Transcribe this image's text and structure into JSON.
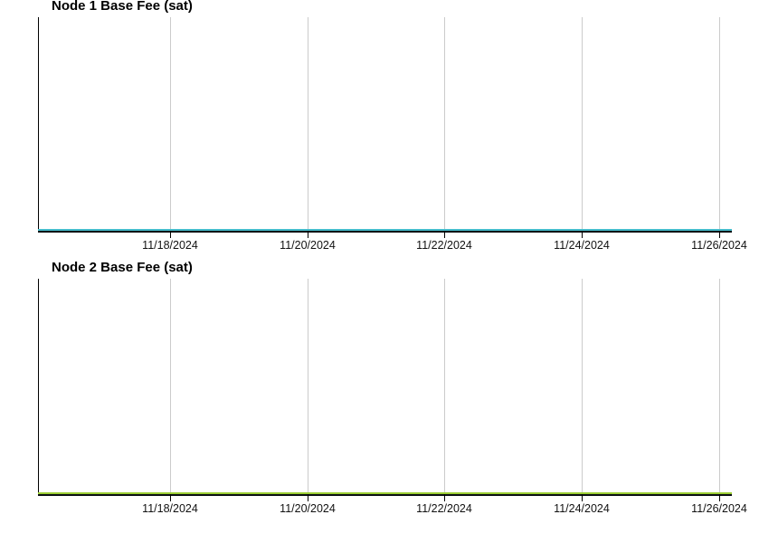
{
  "colors": {
    "background": "#ffffff",
    "axis": "#0b0f13",
    "gridline": "#cbcbcb",
    "title_text": "#000000",
    "tick_label_text": "#121212",
    "node1_line": "#45bccb",
    "node2_line": "#9acd32"
  },
  "chart_data": [
    {
      "type": "line",
      "title": "Node 1 Base Fee (sat)",
      "xlabel": "",
      "ylabel": "",
      "x_tick_labels": [
        "11/18/2024",
        "11/20/2024",
        "11/22/2024",
        "11/24/2024",
        "11/26/2024"
      ],
      "x_range_approx": [
        "11/16/2024",
        "11/26/2024"
      ],
      "series": [
        {
          "name": "Node 1 Base Fee (sat)",
          "color": "#45bccb",
          "x": [
            "11/16/2024",
            "11/26/2024"
          ],
          "values": [
            0,
            0
          ],
          "shape": "constant flat line at 0, drawn along the bottom x-axis for the full width"
        }
      ],
      "y_axis": "no y tick labels visible",
      "grid": "vertical gridlines at each x tick only",
      "legend": "none"
    },
    {
      "type": "line",
      "title": "Node 2 Base Fee (sat)",
      "xlabel": "",
      "ylabel": "",
      "x_tick_labels": [
        "11/18/2024",
        "11/20/2024",
        "11/22/2024",
        "11/24/2024",
        "11/26/2024"
      ],
      "x_range_approx": [
        "11/16/2024",
        "11/26/2024"
      ],
      "series": [
        {
          "name": "Node 2 Base Fee (sat)",
          "color": "#9acd32",
          "x": [
            "11/16/2024",
            "11/26/2024"
          ],
          "values": [
            0,
            0
          ],
          "shape": "constant flat line at 0, drawn along the bottom x-axis for the full width"
        }
      ],
      "y_axis": "no y tick labels visible",
      "grid": "vertical gridlines at each x tick only",
      "legend": "none"
    }
  ]
}
